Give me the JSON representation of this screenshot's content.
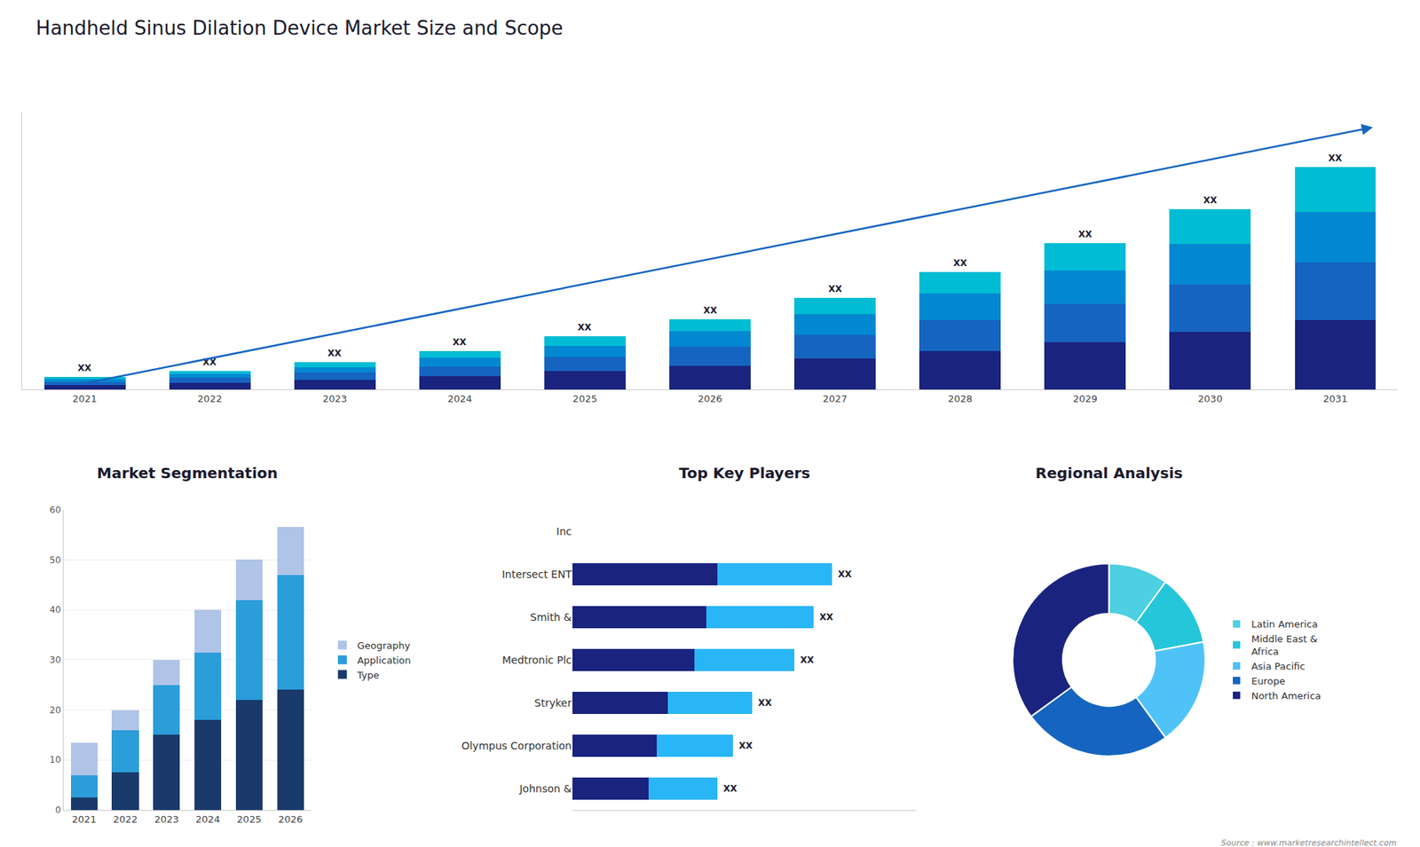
{
  "title": "Handheld Sinus Dilation Device Market Size and Scope",
  "annotations": [
    "Source : www.marketresearchintellect.com"
  ],
  "chart_data": [
    {
      "type": "bar",
      "stacked": true,
      "categories": [
        "2021",
        "2022",
        "2023",
        "2024",
        "2025",
        "2026",
        "2027",
        "2028",
        "2029",
        "2030",
        "2031"
      ],
      "series": [
        {
          "color": "#1a237e",
          "values": [
            1.2,
            1.8,
            2.5,
            3.5,
            4.8,
            6.2,
            8.0,
            10.0,
            12.2,
            14.8,
            18.0
          ]
        },
        {
          "color": "#1565c0",
          "values": [
            0.8,
            1.2,
            1.8,
            2.5,
            3.5,
            4.8,
            6.2,
            8.0,
            10.0,
            12.2,
            14.8
          ]
        },
        {
          "color": "#0288d1",
          "values": [
            0.7,
            1.0,
            1.5,
            2.2,
            3.0,
            4.0,
            5.2,
            6.8,
            8.5,
            10.5,
            13.0
          ]
        },
        {
          "color": "#00bcd4",
          "values": [
            0.5,
            0.8,
            1.2,
            1.8,
            2.5,
            3.2,
            4.2,
            5.5,
            7.0,
            9.0,
            11.5
          ]
        }
      ],
      "ylim": [
        0,
        71.625
      ],
      "tick_labels": "x",
      "annotations": [
        {
          "category": "2021",
          "text": "XX"
        },
        {
          "category": "2022",
          "text": "XX"
        },
        {
          "category": "2023",
          "text": "XX"
        },
        {
          "category": "2024",
          "text": "XX"
        },
        {
          "category": "2025",
          "text": "XX"
        },
        {
          "category": "2026",
          "text": "XX"
        },
        {
          "category": "2027",
          "text": "XX"
        },
        {
          "category": "2028",
          "text": "XX"
        },
        {
          "category": "2029",
          "text": "XX"
        },
        {
          "category": "2030",
          "text": "XX"
        },
        {
          "category": "2031",
          "text": "XX"
        }
      ]
    },
    {
      "type": "bar",
      "title": "Market Segmentation",
      "stacked": true,
      "categories": [
        "2021",
        "2022",
        "2023",
        "2024",
        "2025",
        "2026"
      ],
      "series": [
        {
          "name": "Type",
          "color": "#1a3a6b",
          "values": [
            2.5,
            7.5,
            15.0,
            18.0,
            22.0,
            24.0
          ]
        },
        {
          "name": "Application",
          "color": "#2b9dd9",
          "values": [
            4.5,
            8.5,
            10.0,
            13.5,
            20.0,
            23.0
          ]
        },
        {
          "name": "Geography",
          "color": "#b0c4e8",
          "values": [
            6.5,
            4.0,
            5.0,
            8.5,
            8.0,
            9.5
          ]
        }
      ],
      "ylim": [
        0,
        60
      ],
      "yticks": [
        0,
        10,
        20,
        30,
        40,
        50,
        60
      ],
      "grid": true,
      "legend": "right"
    },
    {
      "type": "bar",
      "title": "Top Key Players",
      "orientation": "horizontal",
      "stacked": true,
      "categories": [
        "Inc",
        "Intersect ENT",
        "Smith &",
        "Medtronic Plc",
        "Stryker",
        "Olympus Corporation",
        "Johnson &"
      ],
      "series": [
        {
          "color": "#1a237e",
          "values": [
            0,
            3.8,
            3.5,
            3.2,
            2.5,
            2.2,
            2.0
          ]
        },
        {
          "color": "#29b6f6",
          "values": [
            0,
            3.0,
            2.8,
            2.6,
            2.2,
            2.0,
            1.8
          ]
        }
      ],
      "xlim": [
        0,
        9
      ],
      "tick_labels": "y",
      "annotations": [
        {
          "category": "Intersect ENT",
          "text": "XX"
        },
        {
          "category": "Smith &",
          "text": "XX"
        },
        {
          "category": "Medtronic Plc",
          "text": "XX"
        },
        {
          "category": "Stryker",
          "text": "XX"
        },
        {
          "category": "Olympus Corporation",
          "text": "XX"
        },
        {
          "category": "Johnson &",
          "text": "XX"
        }
      ]
    },
    {
      "type": "pie",
      "title": "Regional Analysis",
      "categories": [
        "Latin America",
        "Middle East &\nAfrica",
        "Asia Pacific",
        "Europe",
        "North America"
      ],
      "values": [
        10,
        12,
        18,
        25,
        35
      ],
      "colors": [
        "#4dd0e1",
        "#26c6da",
        "#4fc3f7",
        "#1565c0",
        "#1a237e"
      ],
      "legend": "right"
    }
  ]
}
